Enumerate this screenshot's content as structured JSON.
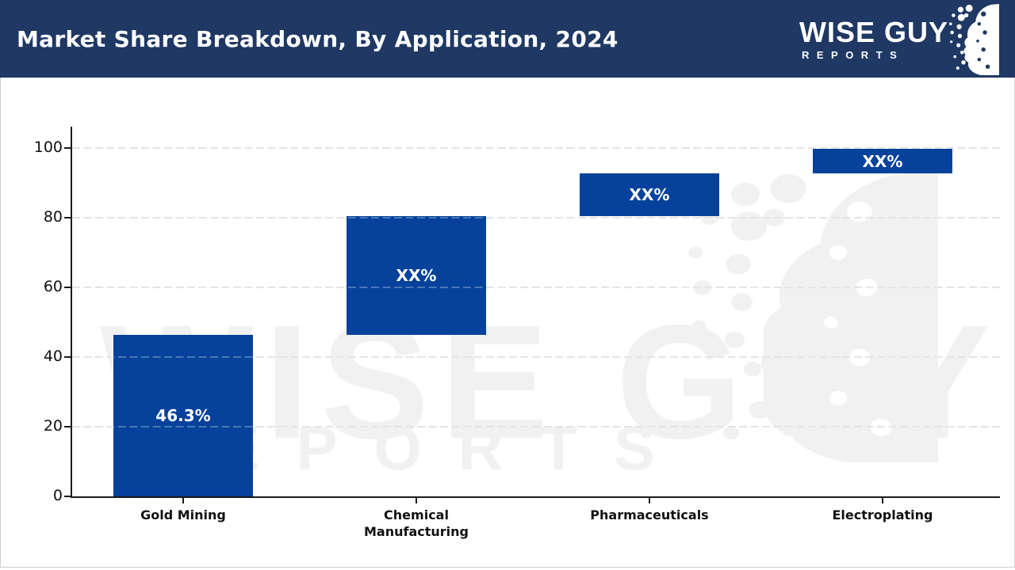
{
  "header": {
    "title": "Market Share Breakdown, By Application, 2024",
    "logo": {
      "line1": "WISE GUY",
      "line2": "REPORTS"
    }
  },
  "watermark": {
    "line1": "WISE GUY",
    "line2": "REPORTS"
  },
  "chart_data": {
    "type": "bar",
    "subtype": "waterfall-stacked-percentage",
    "title": "Market Share Breakdown, By Application, 2024",
    "categories": [
      "Gold Mining",
      "Chemical\nManufacturing",
      "Pharmaceuticals",
      "Electroplating"
    ],
    "segments": [
      {
        "category": "Gold Mining",
        "start": 0,
        "end": 46.3,
        "label": "46.3%"
      },
      {
        "category": "Chemical\nManufacturing",
        "start": 46.3,
        "end": 80.3,
        "label": "XX%"
      },
      {
        "category": "Pharmaceuticals",
        "start": 80.3,
        "end": 92.6,
        "label": "XX%"
      },
      {
        "category": "Electroplating",
        "start": 92.6,
        "end": 99.6,
        "label": "XX%"
      }
    ],
    "yticks": [
      0,
      20,
      40,
      60,
      80,
      100
    ],
    "ylim": [
      0,
      105
    ],
    "xlabel": "",
    "ylabel": "",
    "grid": "dashed-horizontal",
    "legend": "none",
    "colors": {
      "bar": "#06429b",
      "bar_label": "#ffffff",
      "header_bg": "#1f3864",
      "gridline": "#dadada",
      "axis": "#1a1a1a",
      "watermark": "#f1f1f1"
    }
  }
}
